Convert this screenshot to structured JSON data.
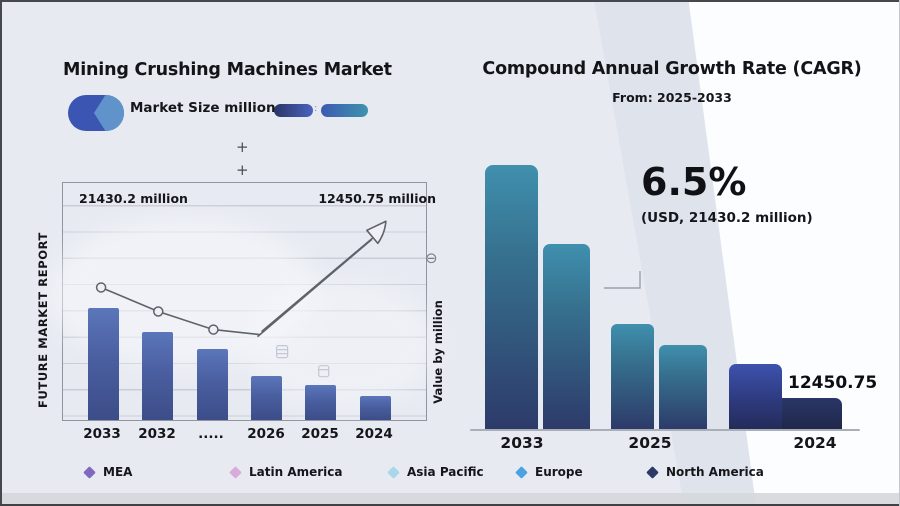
{
  "left_panel": {
    "title": "Mining Crushing Machines Market",
    "market_size_label": "Market Size million",
    "ratio_separator": ":",
    "chart": {
      "start_value_label": "21430.2 million",
      "end_value_label": "12450.75 million",
      "watermark": "FUTURE MARKET REPORT",
      "y_axis_label": "Value by million"
    }
  },
  "right_panel": {
    "title": "Compound Annual Growth Rate (CAGR)",
    "subtitle": "From: 2025-2033",
    "cagr_value": "6.5%",
    "cagr_detail": "(USD, 21430.2 million)",
    "value_label": "12450.75"
  },
  "legend": {
    "items": [
      {
        "label": "MEA",
        "color": "#8068bf"
      },
      {
        "label": "Latin America",
        "color": "#d8abda"
      },
      {
        "label": "Asia Pacific",
        "color": "#a9d6e8"
      },
      {
        "label": "Europe",
        "color": "#4aa2e2"
      },
      {
        "label": "North America",
        "color": "#2c3866"
      }
    ]
  },
  "decorations": {
    "plus": "+",
    "minus_circle": "⊖"
  },
  "colors": {
    "background": "#e7eaf1",
    "left_bar_top": "#5b76ba",
    "left_bar_bottom": "#3c4d88",
    "right_bar_teal_top": "#3f90ae",
    "right_bar_navy_bottom": "#2d3a69",
    "right_bar_blue": "#3d52ae",
    "right_bar_dark_navy": "#2b3668",
    "grid_line": "#c9cdd7"
  },
  "chart_data": [
    {
      "type": "bar",
      "title": "Market Size million",
      "categories": [
        "2033",
        "2032",
        ".....",
        "2026",
        "2025",
        "2024"
      ],
      "values_relative": [
        100,
        79,
        63,
        39,
        31,
        21
      ],
      "anchor_values": {
        "2033": 21430.2,
        "2024": 12450.75
      },
      "unit": "USD million",
      "ylabel": "Value by million",
      "grid": true,
      "legend_position": "none",
      "annotations": [
        "declining bars from 2033 to 2024 overlaid with trend line and rising forecast arrow",
        "start label 21430.2 million",
        "end label 12450.75 million"
      ]
    },
    {
      "type": "bar",
      "title": "Compound Annual Growth Rate (CAGR)",
      "subtitle": "From: 2025-2033",
      "cagr_percent": 6.5,
      "categories": [
        "2033",
        "2025",
        "2024"
      ],
      "series": [
        {
          "name": "primary",
          "values_relative": [
            100,
            40,
            25
          ]
        },
        {
          "name": "secondary",
          "values_relative": [
            70,
            32,
            12
          ]
        }
      ],
      "anchor_values": {
        "2033": 21430.2,
        "2024": 12450.75
      },
      "unit": "USD million",
      "grid": false,
      "legend_position": "none"
    }
  ]
}
